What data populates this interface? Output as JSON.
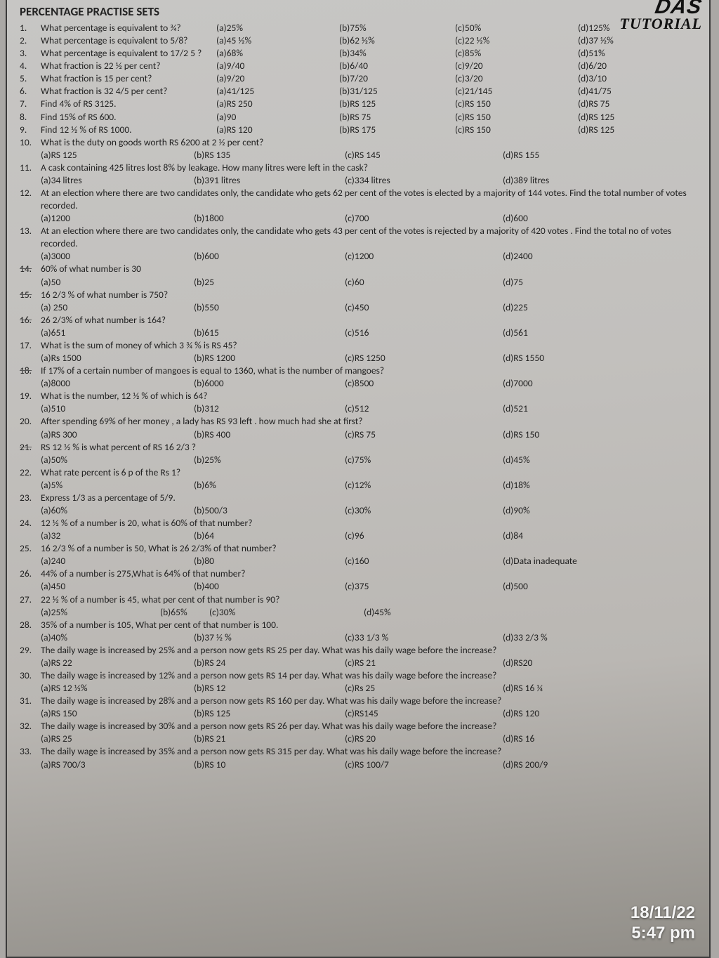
{
  "title": "PERCENTAGE PRACTISE SETS",
  "logo": {
    "line1": "DAS",
    "line2": "TUTORIAL"
  },
  "timestamp": {
    "date": "18/11/22",
    "time": "5:47 pm"
  },
  "q_inline": [
    {
      "n": "1.",
      "q": "What percentage is equivalent to ¾?",
      "a": "(a)25%",
      "b": "(b)75%",
      "c": "(c)50%",
      "d": "(d)125%"
    },
    {
      "n": "2.",
      "q": "What percentage is equivalent to 5/8?",
      "a": "(a)45 ½%",
      "b": "(b)62 ½%",
      "c": "(c)22 ½%",
      "d": "(d)37 ½%"
    },
    {
      "n": "3.",
      "q": "What percentage is equivalent to 17/2 5 ?",
      "a": "(a)68%",
      "b": "(b)34%",
      "c": "(c)85%",
      "d": "(d)51%"
    },
    {
      "n": "4.",
      "q": "What fraction is 22 ½ per cent?",
      "a": "(a)9/40",
      "b": "(b)6/40",
      "c": "(c)9/20",
      "d": "(d)6/20"
    },
    {
      "n": "5.",
      "q": "What fraction is 15 per cent?",
      "a": "(a)9/20",
      "b": "(b)7/20",
      "c": "(c)3/20",
      "d": "(d)3/10"
    },
    {
      "n": "6.",
      "q": "What fraction is 32 4/5 per cent?",
      "a": "(a)41/125",
      "b": "(b)31/125",
      "c": "(c)21/145",
      "d": "(d)41/75"
    },
    {
      "n": "7.",
      "q": "Find 4% of RS 3125.",
      "a": "(a)RS 250",
      "b": "(b)RS 125",
      "c": "(c)RS 150",
      "d": "(d)RS 75"
    },
    {
      "n": "8.",
      "q": "Find 15% of RS 600.",
      "a": "(a)90",
      "b": "(b)RS 75",
      "c": "(c)RS 150",
      "d": "(d)RS 125"
    },
    {
      "n": "9.",
      "q": "Find 12 ½ % of RS 1000.",
      "a": "(a)RS 120",
      "b": "(b)RS 175",
      "c": "(c)RS 150",
      "d": "(d)RS 125"
    }
  ],
  "q_block": [
    {
      "n": "10.",
      "q": "What is the duty on goods worth RS 6200 at 2 ½ per cent?",
      "a": "(a)RS 125",
      "b": "(b)RS 135",
      "c": "(c)RS 145",
      "d": "(d)RS 155"
    },
    {
      "n": "11.",
      "q": "A cask containing 425 litres lost 8% by leakage. How many litres were left in the cask?",
      "a": "(a)34 litres",
      "b": "(b)391 litres",
      "c": "(c)334 litres",
      "d": "(d)389 litres"
    },
    {
      "n": "12.",
      "q": "At an election where there are two candidates only, the candidate who gets 62 per cent of the votes is elected by a majority of 144 votes. Find the total number of votes recorded.",
      "a": "(a)1200",
      "b": "(b)1800",
      "c": "(c)700",
      "d": "(d)600"
    },
    {
      "n": "13.",
      "q": "At an election where there are two candidates only, the candidate who gets 43 per cent of the votes is rejected by a majority of 420 votes . Find the total no of votes recorded.",
      "a": "(a)3000",
      "b": "(b)600",
      "c": "(c)1200",
      "d": "(d)2400"
    },
    {
      "n": "14.",
      "q": "60% of what number is 30",
      "a": "(a)50",
      "b": "(b)25",
      "c": "(c)60",
      "d": "(d)75"
    },
    {
      "n": "15.",
      "q": "16 2/3 % of what number is 750?",
      "a": "(a) 250",
      "b": "(b)550",
      "c": "(c)450",
      "d": "(d)225"
    },
    {
      "n": "16.",
      "q": "26 2/3% of what number is 164?",
      "a": "(a)651",
      "b": "(b)615",
      "c": "(c)516",
      "d": "(d)561"
    },
    {
      "n": "17.",
      "q": "What is the sum of money of which 3 ¾ % is RS 45?",
      "a": "(a)Rs 1500",
      "b": "(b)RS 1200",
      "c": "(c)RS 1250",
      "d": "(d)RS 1550"
    },
    {
      "n": "18.",
      "q": "If 17% of a certain number of mangoes is equal to 1360, what is the number of mangoes?",
      "a": "(a)8000",
      "b": "(b)6000",
      "c": "(c)8500",
      "d": "(d)7000"
    },
    {
      "n": "19.",
      "q": "What is the number, 12 ½ % of which is 64?",
      "a": "(a)510",
      "b": "(b)312",
      "c": "(c)512",
      "d": "(d)521"
    },
    {
      "n": "20.",
      "q": "After spending 69% of her money , a lady has RS 93 left . how much had she at first?",
      "a": "(a)RS 300",
      "b": "(b)RS 400",
      "c": "(c)RS 75",
      "d": "(d)RS 150"
    },
    {
      "n": "21.",
      "q": "RS 12 ½ % is what percent of RS 16 2/3 ?",
      "a": "(a)50%",
      "b": "(b)25%",
      "c": "(c)75%",
      "d": "(d)45%"
    },
    {
      "n": "22.",
      "q": "What rate percent is 6 p of the Rs 1?",
      "a": "(a)5%",
      "b": "(b)6%",
      "c": "(c)12%",
      "d": "(d)18%"
    },
    {
      "n": "23.",
      "q": "Express 1/3 as a percentage of 5/9.",
      "a": "(a)60%",
      "b": "(b)500/3",
      "c": "(c)30%",
      "d": "(d)90%"
    },
    {
      "n": "24.",
      "q": "12 ½ % of a number is 20, what is 60% of that number?",
      "a": "(a)32",
      "b": "(b)64",
      "c": "(c)96",
      "d": "(d)84"
    },
    {
      "n": "25.",
      "q": "16 2/3 % of a number is 50, What is 26 2/3% of that number?",
      "a": "(a)240",
      "b": "(b)80",
      "c": "(c)160",
      "d": "(d)Data inadequate"
    },
    {
      "n": "26.",
      "q": "44% of a number is 275,What is 64% of that number?",
      "a": "(a)450",
      "b": "(b)400",
      "c": "(c)375",
      "d": "(d)500"
    },
    {
      "n": "27.",
      "q": "22 ½ % of a number is 45, what per cent of that number is 90?",
      "a": "(a)25%",
      "b": "(b)65%",
      "bc": "(c)30%",
      "c": "",
      "d": "(d)45%"
    },
    {
      "n": "28.",
      "q": "35% of a number is 105, What per cent of that number is 100.",
      "a": "(a)40%",
      "b": "(b)37 ½ %",
      "c": "(c)33 1/3 %",
      "d": "(d)33 2/3 %"
    },
    {
      "n": "29.",
      "q": "The daily wage is increased by 25% and a person now gets RS 25 per day. What was his daily wage before the increase?",
      "a": "(a)RS 22",
      "b": "(b)RS 24",
      "c": "(c)RS 21",
      "d": "(d)RS20"
    },
    {
      "n": "30.",
      "q": "The daily wage is increased by 12% and a person now gets RS 14 per day. What was his daily wage before the increase?",
      "a": "(a)RS 12 ½%",
      "b": "(b)RS 12",
      "c": "(c)Rs 25",
      "d": "(d)RS 16 ¼"
    },
    {
      "n": "31.",
      "q": "The daily wage is increased by 28% and a person now gets RS 160 per day. What was his daily wage before the increase?",
      "a": "(a)RS 150",
      "b": "(b)RS 125",
      "c": "(c)RS145",
      "d": "(d)RS 120"
    },
    {
      "n": "32.",
      "q": "The daily wage is increased by 30% and a person now gets RS 26 per day. What was his daily wage before the increase?",
      "a": "(a)RS 25",
      "b": "(b)RS 21",
      "c": "(c)RS 20",
      "d": "(d)RS 16"
    },
    {
      "n": "33.",
      "q": "The daily wage is increased by 35% and a person now gets RS 315 per day. What was his daily wage before the increase?",
      "a": "(a)RS 700/3",
      "b": "(b)RS 10",
      "c": "(c)RS 100/7",
      "d": "(d)RS 200/9"
    }
  ]
}
